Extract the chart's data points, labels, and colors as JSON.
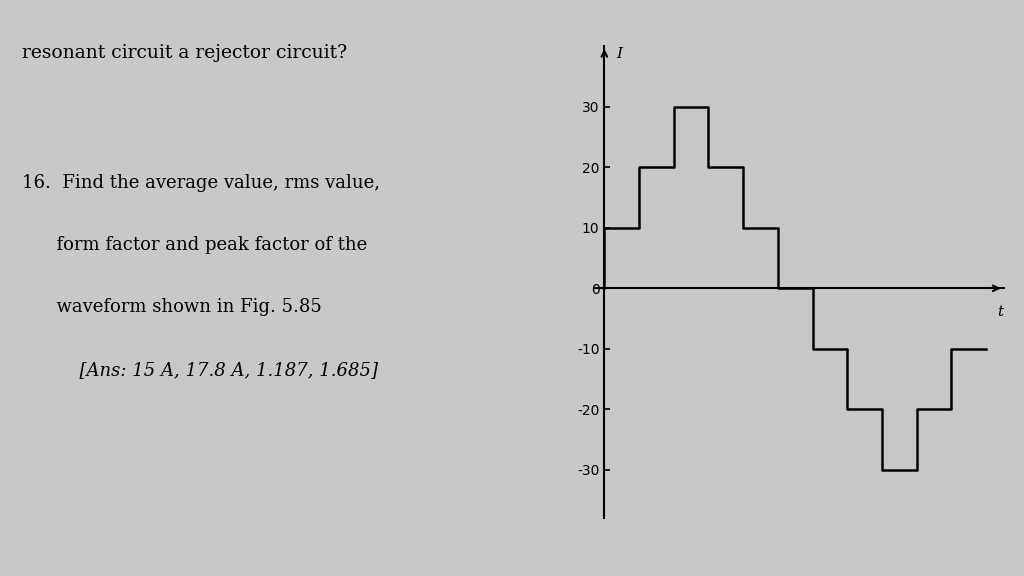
{
  "title_text": "resonant circuit a rejector circuit?",
  "problem_line1": "16.  Find the average value, rms value,",
  "problem_line2": "      form factor and peak factor of the",
  "problem_line3": "      waveform shown in Fig. 5.85",
  "problem_line4": "          [Ans: 15 A, 17.8 A, 1.187, 1.685]",
  "waveform_x": [
    0,
    0,
    1,
    1,
    2,
    2,
    3,
    3,
    4,
    4,
    5,
    5,
    6,
    6,
    7,
    7,
    8,
    8,
    9,
    9,
    10,
    10,
    11
  ],
  "waveform_y": [
    0,
    10,
    10,
    20,
    20,
    30,
    30,
    20,
    20,
    10,
    10,
    0,
    0,
    -10,
    -10,
    -20,
    -20,
    -30,
    -30,
    -20,
    -20,
    -10,
    -10
  ],
  "yticks": [
    -30,
    -20,
    -10,
    0,
    10,
    20,
    30
  ],
  "ylim": [
    -38,
    40
  ],
  "xlim": [
    -0.3,
    11.5
  ],
  "ylabel": "I",
  "xlabel": "t",
  "line_color": "#000000",
  "bg_color": "#c8c8c8",
  "text_color": "#000000",
  "axis_color": "#000000"
}
